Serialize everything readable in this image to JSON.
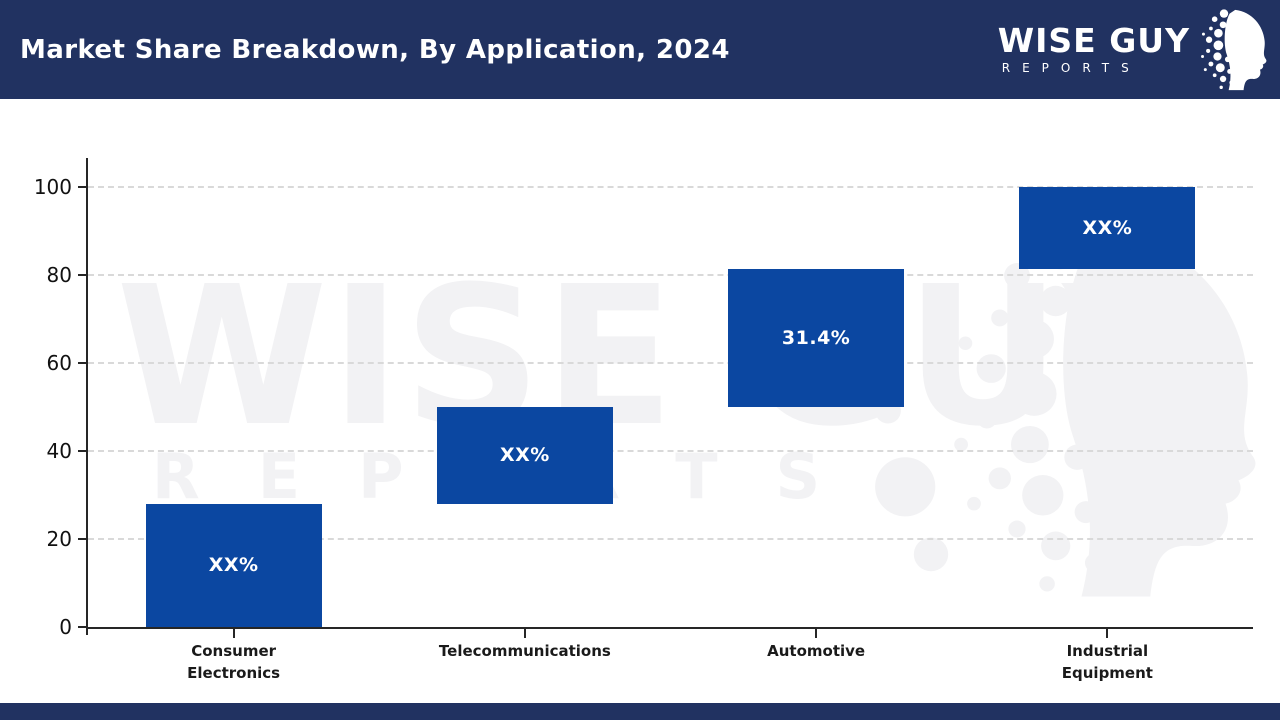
{
  "header": {
    "title": "Market Share Breakdown, By Application, 2024",
    "logo": {
      "name": "WISE GUY",
      "tagline": "REPORTS"
    }
  },
  "watermark": {
    "line1": "WISE GUY",
    "line2": "REPORTS"
  },
  "footer": {
    "visible": true
  },
  "chart_data": {
    "type": "bar",
    "subtype": "floating-waterfall",
    "title": "Market Share Breakdown, By Application, 2024",
    "categories": [
      [
        "Consumer",
        "Electronics"
      ],
      [
        "Telecommunications"
      ],
      [
        "Automotive"
      ],
      [
        "Industrial",
        "Equipment"
      ]
    ],
    "segments": [
      {
        "category": "Consumer Electronics",
        "start": 0,
        "end": 28,
        "label": "XX%"
      },
      {
        "category": "Telecommunications",
        "start": 28,
        "end": 50,
        "label": "XX%"
      },
      {
        "category": "Automotive",
        "start": 50,
        "end": 81.4,
        "label": "31.4%"
      },
      {
        "category": "Industrial Equipment",
        "start": 81.4,
        "end": 100,
        "label": "XX%"
      }
    ],
    "y_ticks": [
      0,
      20,
      40,
      60,
      80,
      100
    ],
    "ylim": [
      0,
      106
    ],
    "xlabel": "",
    "ylabel": "",
    "grid": "horizontal-dashed",
    "legend": "none"
  },
  "colors": {
    "header_bg": "#213261",
    "footer_bg": "#213261",
    "bar": "#0b47a1",
    "bar_label": "#ffffff",
    "gridline": "#d9d9d9",
    "axis": "#262626",
    "watermark": "#f2f2f4"
  }
}
